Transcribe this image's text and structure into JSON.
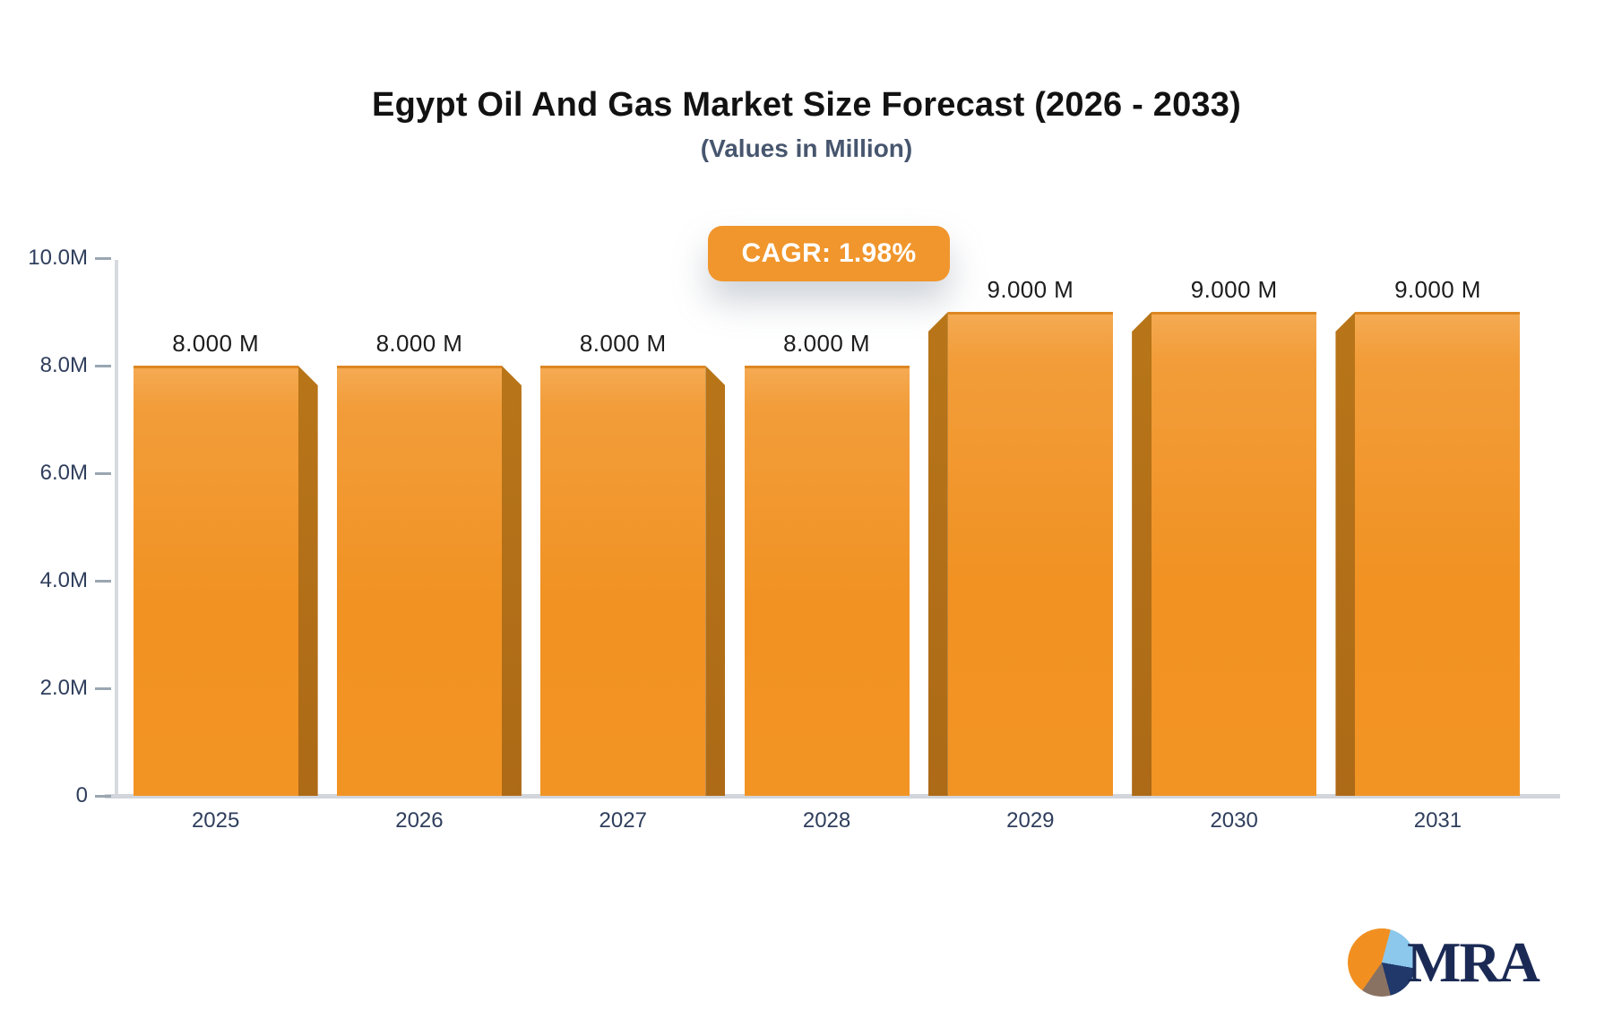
{
  "header": {
    "title": "Egypt Oil And Gas Market Size Forecast (2026 - 2033)",
    "subtitle": "(Values in Million)"
  },
  "badge": {
    "label": "CAGR: 1.98%"
  },
  "chart_data": {
    "type": "bar",
    "title": "Egypt Oil And Gas Market Size Forecast (2026 - 2033)",
    "subtitle": "(Values in Million)",
    "unit": "Million",
    "cagr": "CAGR: 1.98%",
    "categories": [
      "2025",
      "2026",
      "2027",
      "2028",
      "2029",
      "2030",
      "2031"
    ],
    "values": [
      8,
      8,
      8,
      8,
      9,
      9,
      9
    ],
    "value_labels": [
      "8.000 M",
      "8.000 M",
      "8.000 M",
      "8.000 M",
      "9.000 M",
      "9.000 M",
      "9.000 M"
    ],
    "ylim": [
      0,
      10
    ],
    "yticks": [
      {
        "label": "10.0M",
        "value": 10
      },
      {
        "label": "8.0M",
        "value": 8
      },
      {
        "label": "6.0M",
        "value": 6
      },
      {
        "label": "4.0M",
        "value": 4
      },
      {
        "label": "2.0M",
        "value": 2
      },
      {
        "label": "0",
        "value": 0
      }
    ],
    "grid": false,
    "legend": false,
    "colors": {
      "bar": "#f29222",
      "bar_highlight": "#f5aa52",
      "bar_shadow_edge": "#ad6a17",
      "axis": "#d7dade",
      "tick_text": "#2f3e5c",
      "value_text": "#1c1c1c",
      "badge_bg": "#f0962d",
      "badge_text": "#ffffff",
      "title_text": "#121212",
      "subtitle_text": "#47566e"
    }
  },
  "logo": {
    "text": "MRA",
    "pie_slices": [
      "#f19021",
      "#8cc7ec",
      "#20386a",
      "#8a7263"
    ]
  }
}
